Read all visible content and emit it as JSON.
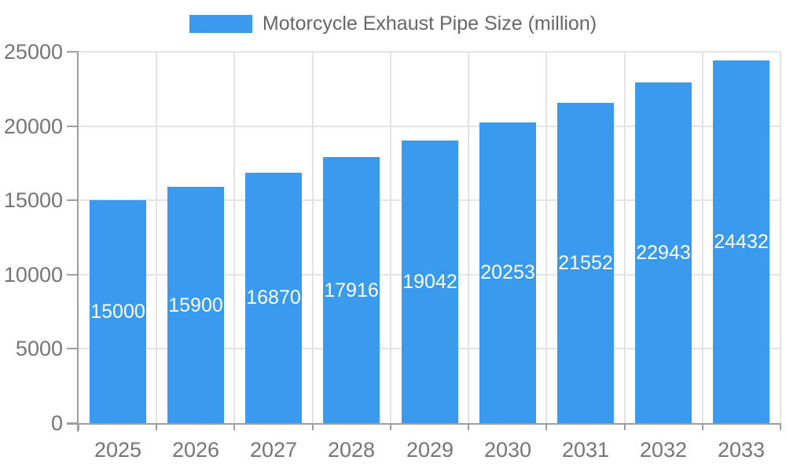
{
  "chart_data": {
    "type": "bar",
    "title": "Motorcycle Exhaust Pipe Size (million)",
    "categories": [
      "2025",
      "2026",
      "2027",
      "2028",
      "2029",
      "2030",
      "2031",
      "2032",
      "2033"
    ],
    "values": [
      15000,
      15900,
      16870,
      17916,
      19042,
      20253,
      21552,
      22943,
      24432
    ],
    "xlabel": "",
    "ylabel": "",
    "ylim": [
      0,
      25000
    ],
    "y_ticks": [
      0,
      5000,
      10000,
      15000,
      20000,
      25000
    ],
    "grid": true,
    "legend_position": "top-center",
    "value_labels_position": "inside-center",
    "colors": {
      "bar": "#3a9aed",
      "grid": "#e3e3e3",
      "axis": "#9e9e9e",
      "tick_text": "#757575",
      "legend_text": "#666666",
      "value_label_text": "#ffffff",
      "background": "#ffffff"
    }
  }
}
